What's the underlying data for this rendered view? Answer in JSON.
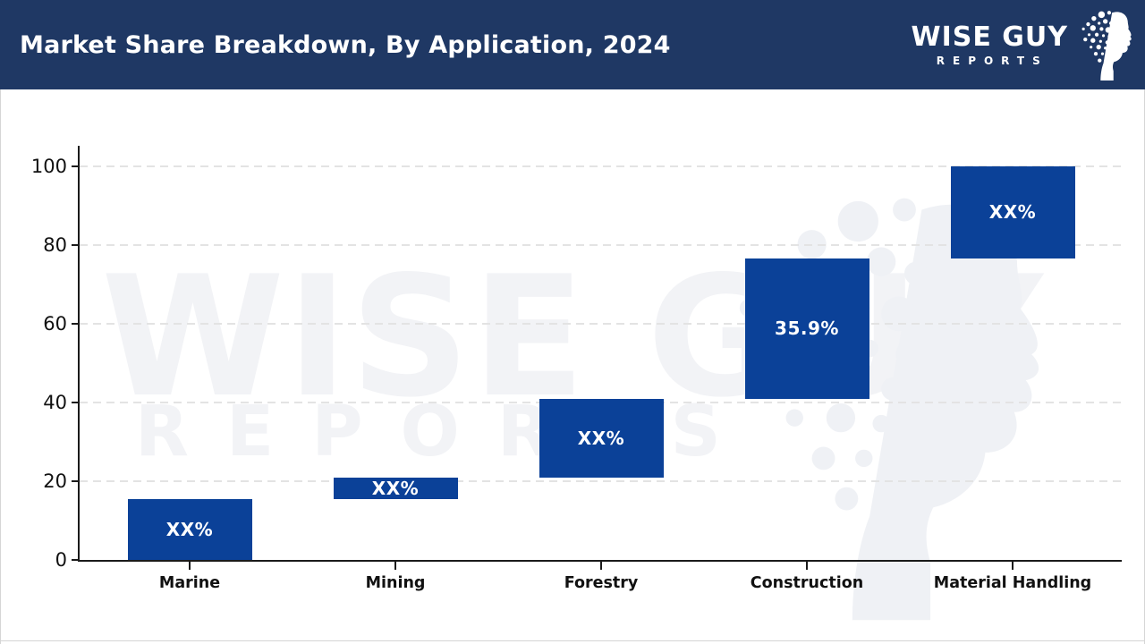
{
  "header": {
    "title": "Market Share Breakdown, By Application, 2024",
    "logo": {
      "line1": "WISE GUY",
      "line2": "REPORTS"
    }
  },
  "watermark": {
    "line1": "WISE GUY",
    "line2": "REPORTS"
  },
  "chart_data": {
    "type": "bar",
    "subtype": "waterfall",
    "title": "Market Share Breakdown, By Application, 2024",
    "categories": [
      "Marine",
      "Mining",
      "Forestry",
      "Construction",
      "Material Handling"
    ],
    "segments": [
      {
        "category": "Marine",
        "start": 0,
        "end": 15.5,
        "value_label": "XX%"
      },
      {
        "category": "Mining",
        "start": 15.5,
        "end": 20.8,
        "value_label": "XX%"
      },
      {
        "category": "Forestry",
        "start": 20.8,
        "end": 40.8,
        "value_label": "XX%"
      },
      {
        "category": "Construction",
        "start": 40.8,
        "end": 76.7,
        "value_label": "35.9%"
      },
      {
        "category": "Material Handling",
        "start": 76.7,
        "end": 100,
        "value_label": "XX%"
      }
    ],
    "yticks": [
      0,
      20,
      40,
      60,
      80,
      100
    ],
    "ylim": [
      0,
      105
    ],
    "xlabel": "",
    "ylabel": "",
    "grid": "dashed horizontal",
    "legend": "none",
    "colors": {
      "bar": "#0b4198",
      "header_background": "#1f3864",
      "axis": "#1a1a1a",
      "grid": "#e3e3e3",
      "bar_label": "#ffffff",
      "watermark": "#f2f3f6"
    }
  }
}
